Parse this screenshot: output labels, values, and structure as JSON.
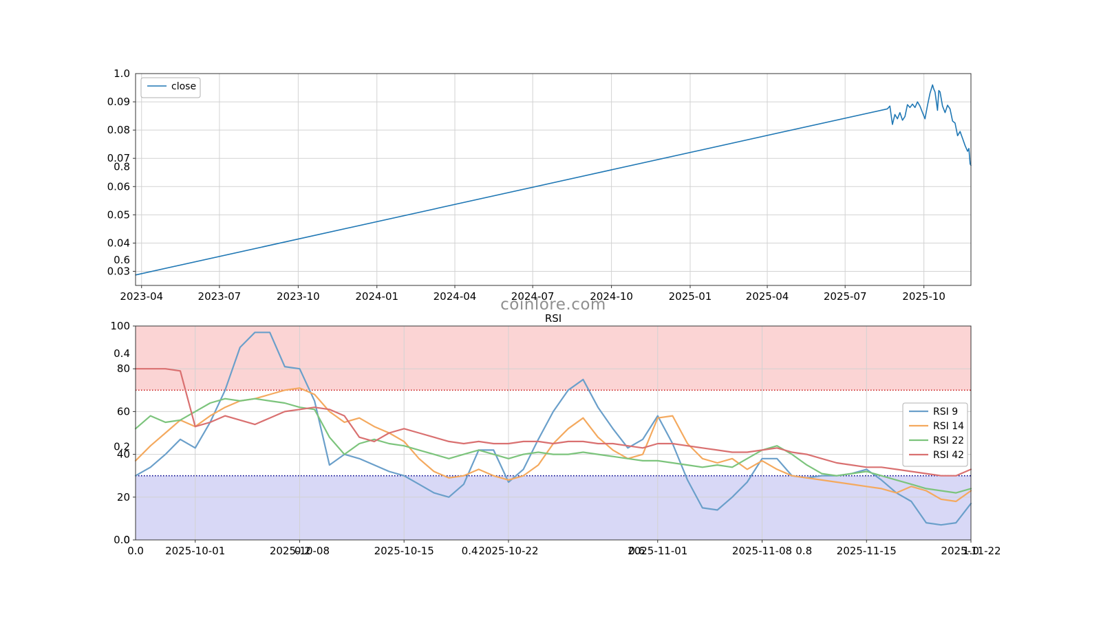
{
  "watermark": "coinlore.com",
  "chart_data": [
    {
      "type": "line",
      "id": "price",
      "legend_position": "upper-left",
      "ylim": [
        0.025,
        0.1
      ],
      "y_ticks": [
        {
          "v": 0.03,
          "label": "0.03"
        },
        {
          "v": 0.04,
          "label": "0.04"
        },
        {
          "v": 0.05,
          "label": "0.05"
        },
        {
          "v": 0.06,
          "label": "0.06"
        },
        {
          "v": 0.07,
          "label": "0.07"
        },
        {
          "v": 0.08,
          "label": "0.08"
        },
        {
          "v": 0.09,
          "label": "0.09"
        }
      ],
      "x_ticks": [
        {
          "f": 0.0072,
          "label": "2023-04"
        },
        {
          "f": 0.1004,
          "label": "2023-07"
        },
        {
          "f": 0.1947,
          "label": "2023-10"
        },
        {
          "f": 0.2889,
          "label": "2024-01"
        },
        {
          "f": 0.3822,
          "label": "2024-04"
        },
        {
          "f": 0.4754,
          "label": "2024-07"
        },
        {
          "f": 0.5697,
          "label": "2024-10"
        },
        {
          "f": 0.6639,
          "label": "2025-01"
        },
        {
          "f": 0.7562,
          "label": "2025-04"
        },
        {
          "f": 0.8494,
          "label": "2025-07"
        },
        {
          "f": 0.9437,
          "label": "2025-10"
        }
      ],
      "series": [
        {
          "name": "close",
          "color": "#1f77b4",
          "width": 1.6,
          "points": [
            [
              0,
              0.0287
            ],
            [
              0.9,
              0.0875
            ],
            [
              0.903,
              0.0885
            ],
            [
              0.906,
              0.082
            ],
            [
              0.909,
              0.0855
            ],
            [
              0.912,
              0.084
            ],
            [
              0.915,
              0.0862
            ],
            [
              0.918,
              0.0835
            ],
            [
              0.921,
              0.0848
            ],
            [
              0.924,
              0.089
            ],
            [
              0.927,
              0.088
            ],
            [
              0.93,
              0.0892
            ],
            [
              0.933,
              0.088
            ],
            [
              0.936,
              0.09
            ],
            [
              0.939,
              0.0885
            ],
            [
              0.942,
              0.0862
            ],
            [
              0.945,
              0.084
            ],
            [
              0.948,
              0.0888
            ],
            [
              0.951,
              0.093
            ],
            [
              0.954,
              0.096
            ],
            [
              0.9555,
              0.0945
            ],
            [
              0.957,
              0.0935
            ],
            [
              0.96,
              0.087
            ],
            [
              0.9615,
              0.094
            ],
            [
              0.963,
              0.0935
            ],
            [
              0.966,
              0.0885
            ],
            [
              0.969,
              0.0862
            ],
            [
              0.972,
              0.0888
            ],
            [
              0.975,
              0.0875
            ],
            [
              0.978,
              0.0832
            ],
            [
              0.981,
              0.0825
            ],
            [
              0.984,
              0.078
            ],
            [
              0.987,
              0.0795
            ],
            [
              0.99,
              0.077
            ],
            [
              0.993,
              0.0745
            ],
            [
              0.996,
              0.0725
            ],
            [
              0.9975,
              0.0735
            ],
            [
              0.999,
              0.068
            ],
            [
              1,
              0.0675
            ]
          ]
        }
      ]
    },
    {
      "type": "line",
      "id": "rsi",
      "title": "RSI",
      "legend_position": "right",
      "ylim": [
        0,
        100
      ],
      "y_ticks": [
        {
          "v": 0,
          "label": "0"
        },
        {
          "v": 20,
          "label": "20"
        },
        {
          "v": 40,
          "label": "40"
        },
        {
          "v": 60,
          "label": "60"
        },
        {
          "v": 80,
          "label": "80"
        },
        {
          "v": 100,
          "label": "100"
        }
      ],
      "x_ticks": [
        {
          "f": 0.0714,
          "label": "2025-10-01"
        },
        {
          "f": 0.1964,
          "label": "2025-10-08"
        },
        {
          "f": 0.3214,
          "label": "2025-10-15"
        },
        {
          "f": 0.4464,
          "label": "2025-10-22"
        },
        {
          "f": 0.625,
          "label": "2025-11-01"
        },
        {
          "f": 0.75,
          "label": "2025-11-08"
        },
        {
          "f": 0.875,
          "label": "2025-11-15"
        },
        {
          "f": 1.0,
          "label": "2025-11-22"
        }
      ],
      "bands": [
        {
          "from": 70,
          "to": 100,
          "color": "#fbd4d4"
        },
        {
          "from": 0,
          "to": 30,
          "color": "#d8d8f6"
        }
      ],
      "threshold_lines": [
        {
          "v": 70,
          "color": "#cc2222"
        },
        {
          "v": 30,
          "color": "#00008b"
        }
      ],
      "series": [
        {
          "name": "RSI 9",
          "color": "#6a9fca",
          "width": 2.2,
          "values": [
            30,
            34,
            40,
            47,
            43,
            55,
            70,
            90,
            97,
            97,
            81,
            80,
            65,
            35,
            40,
            38,
            35,
            32,
            30,
            26,
            22,
            20,
            26,
            42,
            42,
            27,
            33,
            47,
            60,
            70,
            75,
            62,
            52,
            43,
            47,
            58,
            45,
            28,
            15,
            14,
            20,
            27,
            38,
            38,
            30,
            29,
            30,
            30,
            31,
            33,
            28,
            22,
            18,
            8,
            7,
            8,
            17
          ]
        },
        {
          "name": "RSI 14",
          "color": "#f4a95e",
          "width": 2.2,
          "values": [
            37,
            44,
            50,
            56,
            53,
            58,
            62,
            65,
            66,
            68,
            70,
            71,
            68,
            60,
            55,
            57,
            53,
            50,
            46,
            38,
            32,
            29,
            30,
            33,
            30,
            28,
            30,
            35,
            45,
            52,
            57,
            48,
            42,
            38,
            40,
            57,
            58,
            45,
            38,
            36,
            38,
            33,
            37,
            33,
            30,
            29,
            28,
            27,
            26,
            25,
            24,
            22,
            25,
            23,
            19,
            18,
            23
          ]
        },
        {
          "name": "RSI 22",
          "color": "#7cc47c",
          "width": 2.2,
          "values": [
            52,
            58,
            55,
            56,
            60,
            64,
            66,
            65,
            66,
            65,
            64,
            62,
            61,
            48,
            40,
            45,
            47,
            45,
            44,
            42,
            40,
            38,
            40,
            42,
            40,
            38,
            40,
            41,
            40,
            40,
            41,
            40,
            39,
            38,
            37,
            37,
            36,
            35,
            34,
            35,
            34,
            38,
            42,
            44,
            40,
            35,
            31,
            30,
            31,
            32,
            30,
            28,
            26,
            24,
            23,
            22,
            24
          ]
        },
        {
          "name": "RSI 42",
          "color": "#d97070",
          "width": 2.2,
          "values": [
            80,
            80,
            80,
            79,
            53,
            55,
            58,
            56,
            54,
            57,
            60,
            61,
            62,
            61,
            58,
            48,
            46,
            50,
            52,
            50,
            48,
            46,
            45,
            46,
            45,
            45,
            46,
            46,
            45,
            46,
            46,
            45,
            45,
            44,
            43,
            45,
            45,
            44,
            43,
            42,
            41,
            41,
            42,
            43,
            41,
            40,
            38,
            36,
            35,
            34,
            34,
            33,
            32,
            31,
            30,
            30,
            33
          ]
        }
      ]
    }
  ],
  "phantom_axis": {
    "y_ticks": [
      "1.0",
      "0.8",
      "0.6",
      "0.4",
      "0.2",
      "0.0"
    ],
    "x_ticks": [
      "0.0",
      "0.2",
      "0.4",
      "0.6",
      "0.8",
      "1.0"
    ]
  }
}
